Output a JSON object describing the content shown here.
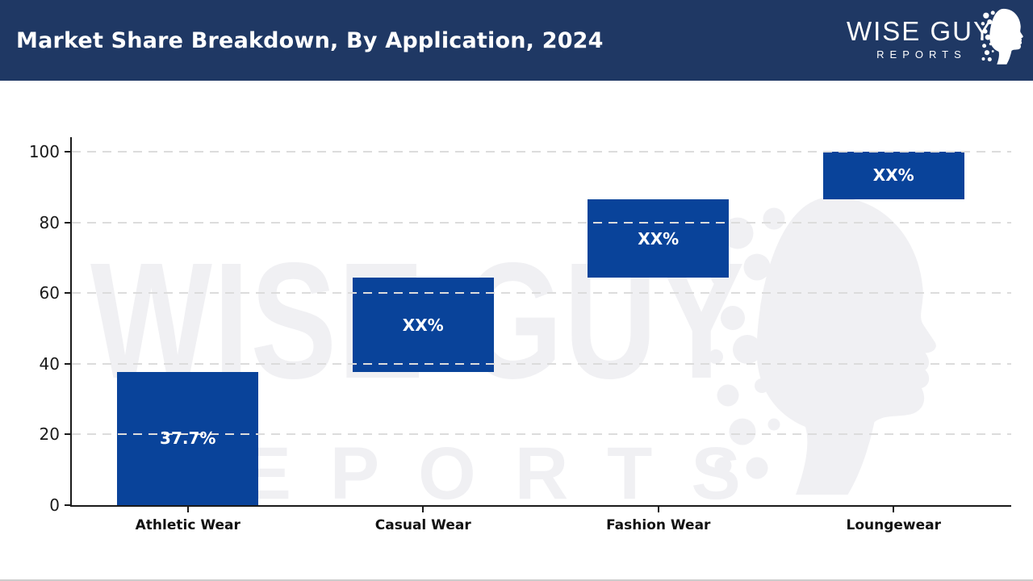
{
  "header": {
    "title": "Market Share Breakdown, By Application, 2024",
    "logo": {
      "brand_line1": "WISE GUY",
      "brand_line2": "REPORTS"
    }
  },
  "watermark": {
    "line1": "WISE GUY",
    "line2": "REPORTS"
  },
  "chart_data": {
    "type": "bar",
    "subtype": "waterfall",
    "title": "Market Share Breakdown, By Application, 2024",
    "categories": [
      "Athletic Wear",
      "Casual Wear",
      "Fashion Wear",
      "Loungewear"
    ],
    "segments": [
      {
        "category": "Athletic Wear",
        "start": 0,
        "end": 37.7,
        "label": "37.7%"
      },
      {
        "category": "Casual Wear",
        "start": 37.7,
        "end": 64.3,
        "label": "XX%"
      },
      {
        "category": "Fashion Wear",
        "start": 64.3,
        "end": 86.6,
        "label": "XX%"
      },
      {
        "category": "Loungewear",
        "start": 86.6,
        "end": 100,
        "label": "XX%"
      }
    ],
    "xlabel": "",
    "ylabel": "",
    "yticks": [
      0,
      20,
      40,
      60,
      80,
      100
    ],
    "ylim": [
      0,
      104
    ],
    "grid": "horizontal dashed gridlines drawn over bars",
    "legend": "none",
    "colors": {
      "bar": "#09439a",
      "bar_label": "#ffffff",
      "grid": "#dcdcdc",
      "axis": "#1a1a1a",
      "tick_label": "#1a1a1a",
      "header_bg": "#1f3864",
      "header_text": "#ffffff",
      "watermark": "#f0f0f3"
    }
  }
}
